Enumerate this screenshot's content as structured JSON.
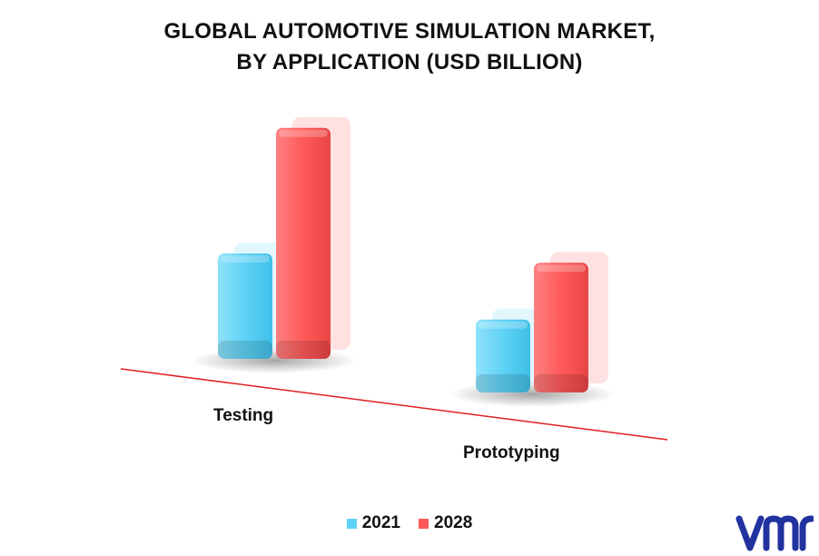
{
  "chart_data": {
    "type": "bar",
    "title": [
      "GLOBAL AUTOMOTIVE SIMULATION MARKET,",
      "BY APPLICATION (USD BILLION)"
    ],
    "categories": [
      "Testing",
      "Prototyping"
    ],
    "series": [
      {
        "name": "2021",
        "values": [
          2.6,
          1.8
        ],
        "color": "#5fd2f5"
      },
      {
        "name": "2028",
        "values": [
          5.7,
          3.2
        ],
        "color": "#ff5a5a"
      }
    ],
    "ylim": [
      0,
      6.5
    ],
    "grid": false,
    "legend": "bottom-center"
  },
  "logo": {
    "icon": "vmr-logo-icon",
    "color": "#2233a0"
  }
}
